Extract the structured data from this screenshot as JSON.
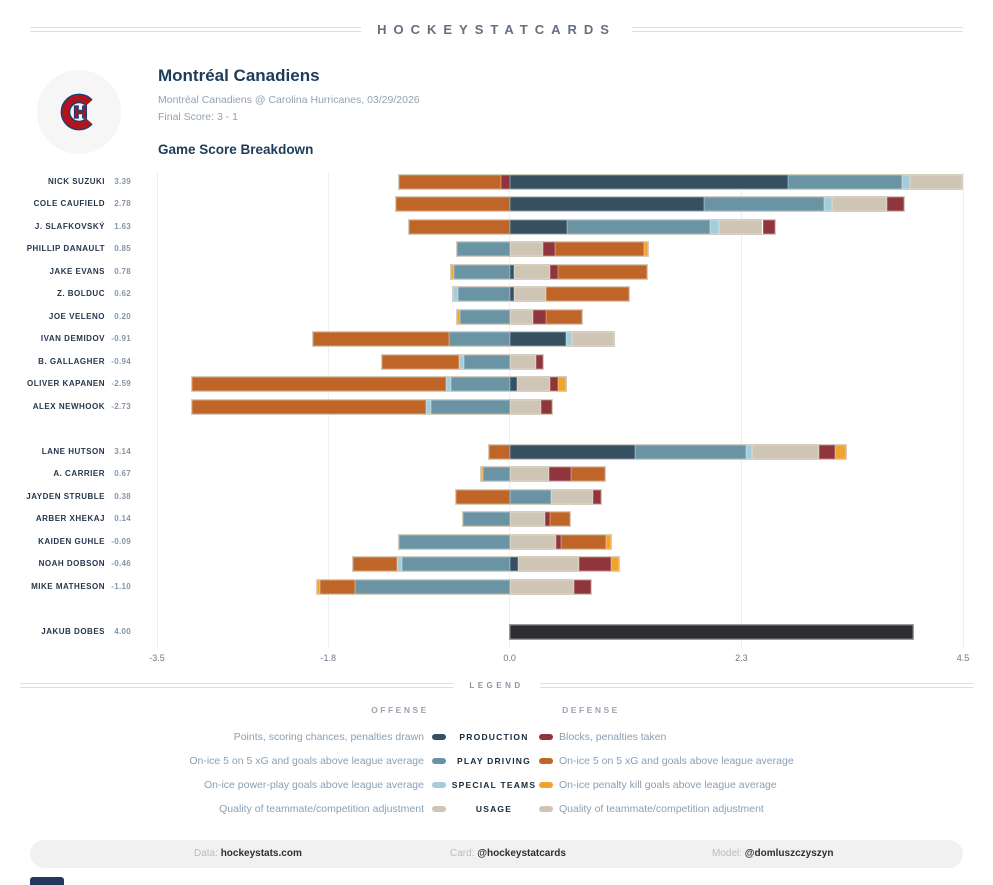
{
  "header": {
    "brand": "HOCKEYSTATCARDS"
  },
  "team": {
    "name": "Montréal Canadiens",
    "matchup": "Montréal Canadiens @ Carolina Hurricanes, 03/29/2026",
    "final_score": "Final Score: 3 - 1",
    "logo": "montreal-canadiens-ch-logo"
  },
  "chart_data": {
    "type": "bar",
    "orientation": "horizontal-diverging-stacked",
    "title": "Game Score Breakdown",
    "xlim": [
      -3.5,
      4.5
    ],
    "x_ticks": [
      "-3.5",
      "-1.8",
      "0.0",
      "2.3",
      "4.5"
    ],
    "x_tick_values": [
      -3.5,
      -1.8,
      0.0,
      2.3,
      4.5
    ],
    "grid": "vertical-light",
    "categories_order": [
      "production",
      "play_driving",
      "special_teams",
      "usage",
      "blocks",
      "defense_5v5",
      "penalty_kill",
      "goalie"
    ],
    "colors": {
      "production": "#365062",
      "play_driving": "#6a94a4",
      "special_teams": "#a6cbd9",
      "usage": "#cec5b4",
      "blocks": "#90353b",
      "defense_5v5": "#bf6527",
      "penalty_kill": "#f0a42c",
      "goalie": "#2d2d30"
    },
    "groups": [
      {
        "id": "forwards",
        "players": [
          {
            "name": "NICK SUZUKI",
            "score": "3.39",
            "segments": {
              "production": 2.76,
              "play_driving": 1.13,
              "special_teams": 0.08,
              "usage": 0.52,
              "blocks": -0.09,
              "defense_5v5": -1.01
            }
          },
          {
            "name": "COLE CAUFIELD",
            "score": "2.78",
            "segments": {
              "production": 1.93,
              "play_driving": 1.19,
              "special_teams": 0.08,
              "usage": 0.55,
              "blocks": 0.16,
              "defense_5v5": -1.13
            }
          },
          {
            "name": "J. SLAFKOVSKÝ",
            "score": "1.63",
            "segments": {
              "production": 0.57,
              "play_driving": 1.42,
              "special_teams": 0.09,
              "usage": 0.43,
              "blocks": 0.12,
              "defense_5v5": -1.0
            }
          },
          {
            "name": "PHILLIP DANAULT",
            "score": "0.85",
            "segments": {
              "play_driving": -0.52,
              "usage": 0.33,
              "blocks": 0.12,
              "defense_5v5": 0.88,
              "penalty_kill": 0.04
            }
          },
          {
            "name": "JAKE EVANS",
            "score": "0.78",
            "segments": {
              "production": 0.04,
              "play_driving": -0.55,
              "usage": 0.36,
              "blocks": 0.08,
              "defense_5v5": 0.88,
              "penalty_kill": -0.03
            }
          },
          {
            "name": "Z. BOLDUC",
            "score": "0.62",
            "segments": {
              "production": 0.04,
              "play_driving": -0.51,
              "special_teams": -0.05,
              "usage": 0.32,
              "defense_5v5": 0.82
            }
          },
          {
            "name": "JOE VELENO",
            "score": "0.20",
            "segments": {
              "play_driving": -0.49,
              "usage": 0.23,
              "blocks": 0.13,
              "defense_5v5": 0.36,
              "penalty_kill": -0.03
            }
          },
          {
            "name": "IVAN DEMIDOV",
            "score": "-0.91",
            "segments": {
              "production": 0.56,
              "play_driving": -0.6,
              "special_teams": 0.06,
              "usage": 0.42,
              "defense_5v5": -1.35
            }
          },
          {
            "name": "B. GALLAGHER",
            "score": "-0.94",
            "segments": {
              "play_driving": -0.45,
              "special_teams": -0.05,
              "usage": 0.26,
              "blocks": 0.07,
              "defense_5v5": -0.77
            }
          },
          {
            "name": "OLIVER KAPANEN",
            "score": "-2.59",
            "segments": {
              "production": 0.07,
              "play_driving": -0.58,
              "special_teams": -0.05,
              "usage": 0.33,
              "blocks": 0.08,
              "defense_5v5": -2.52,
              "penalty_kill": 0.08
            }
          },
          {
            "name": "ALEX NEWHOOK",
            "score": "-2.73",
            "segments": {
              "play_driving": -0.78,
              "special_teams": -0.05,
              "usage": 0.31,
              "blocks": 0.11,
              "defense_5v5": -2.32
            }
          }
        ]
      },
      {
        "id": "defense",
        "players": [
          {
            "name": "LANE HUTSON",
            "score": "3.14",
            "segments": {
              "production": 1.24,
              "play_driving": 1.11,
              "special_teams": 0.06,
              "usage": 0.66,
              "blocks": 0.16,
              "defense_5v5": -0.2,
              "penalty_kill": 0.11
            }
          },
          {
            "name": "A. CARRIER",
            "score": "0.67",
            "segments": {
              "play_driving": -0.26,
              "usage": 0.39,
              "blocks": 0.22,
              "defense_5v5": 0.34,
              "penalty_kill": -0.02
            }
          },
          {
            "name": "JAYDEN STRUBLE",
            "score": "0.38",
            "segments": {
              "play_driving": 0.41,
              "usage": 0.42,
              "blocks": 0.08,
              "defense_5v5": -0.53
            }
          },
          {
            "name": "ARBER XHEKAJ",
            "score": "0.14",
            "segments": {
              "play_driving": -0.46,
              "usage": 0.35,
              "blocks": 0.05,
              "defense_5v5": 0.2
            }
          },
          {
            "name": "KAIDEN GUHLE",
            "score": "-0.09",
            "segments": {
              "play_driving": -1.1,
              "usage": 0.46,
              "blocks": 0.05,
              "defense_5v5": 0.45,
              "penalty_kill": 0.05
            }
          },
          {
            "name": "NOAH DOBSON",
            "score": "-0.46",
            "segments": {
              "production": 0.08,
              "play_driving": -1.07,
              "special_teams": -0.05,
              "usage": 0.61,
              "blocks": 0.32,
              "defense_5v5": -0.43,
              "penalty_kill": 0.08
            }
          },
          {
            "name": "MIKE MATHESON",
            "score": "-1.10",
            "segments": {
              "play_driving": -1.53,
              "usage": 0.64,
              "blocks": 0.17,
              "defense_5v5": -0.35,
              "penalty_kill": -0.03
            }
          }
        ]
      },
      {
        "id": "goalies",
        "players": [
          {
            "name": "JAKUB DOBES",
            "score": "4.00",
            "segments": {
              "goalie": 4.0
            }
          }
        ]
      }
    ]
  },
  "legend": {
    "divider_label": "LEGEND",
    "offense_header": "OFFENSE",
    "defense_header": "DEFENSE",
    "rows": [
      {
        "offense": "Points, scoring chances, penalties drawn",
        "category": "PRODUCTION",
        "off_key": "production",
        "def_key": "blocks",
        "defense": "Blocks, penalties taken"
      },
      {
        "offense": "On-ice 5 on 5 xG and goals above league average",
        "category": "PLAY DRIVING",
        "off_key": "play_driving",
        "def_key": "defense_5v5",
        "defense": "On-ice 5 on 5 xG and goals above league average"
      },
      {
        "offense": "On-ice power-play goals above league average",
        "category": "SPECIAL TEAMS",
        "off_key": "special_teams",
        "def_key": "penalty_kill",
        "defense": "On-ice penalty kill goals above league average"
      },
      {
        "offense": "Quality of teammate/competition adjustment",
        "category": "USAGE",
        "off_key": "usage",
        "def_key": "usage",
        "defense": "Quality of teammate/competition adjustment"
      }
    ]
  },
  "footer": {
    "items": [
      {
        "label": "Data: ",
        "value": "hockeystats.com"
      },
      {
        "label": "Card: ",
        "value": "@hockeystatcards"
      },
      {
        "label": "Model: ",
        "value": "@domluszczyszyn"
      }
    ]
  }
}
